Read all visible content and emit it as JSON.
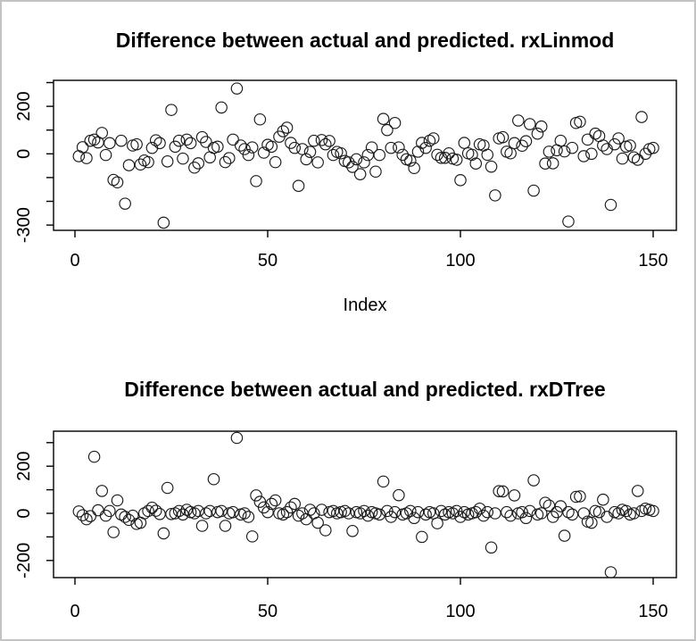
{
  "figure": {
    "background": "#ffffff",
    "border_color": "#c3c3c3",
    "point_color": "#1c1c1c",
    "axis_color": "#000000"
  },
  "chart_data": [
    {
      "type": "scatter",
      "title": "Difference between actual and predicted. rxLinmod",
      "xlabel": "Index",
      "ylabel": "",
      "marker": "open-circle",
      "grid": false,
      "legend": null,
      "x_is_index_from": 1,
      "n_points": 150,
      "x_ticks": [
        0,
        50,
        100,
        150
      ],
      "x_tick_labels": [
        "0",
        "50",
        "100",
        "150"
      ],
      "xlim": [
        -5.6,
        156.2
      ],
      "y_ticks": [
        300,
        200,
        100,
        0,
        -100,
        -200,
        -300
      ],
      "y_tick_labels": [
        "",
        "200",
        "",
        "0",
        "",
        "",
        "-300"
      ],
      "ylim": [
        -322,
        309
      ],
      "values": [
        -10,
        28,
        -18,
        55,
        60,
        48,
        88,
        -5,
        45,
        -110,
        -120,
        55,
        -210,
        -48,
        35,
        40,
        -45,
        -28,
        -35,
        25,
        57,
        45,
        -290,
        -32,
        185,
        30,
        55,
        -20,
        60,
        45,
        -58,
        -40,
        70,
        50,
        -15,
        25,
        30,
        195,
        -35,
        -18,
        60,
        275,
        35,
        20,
        -5,
        27,
        -115,
        145,
        5,
        38,
        30,
        -35,
        72,
        95,
        110,
        46,
        25,
        -135,
        20,
        -23,
        8,
        55,
        -36,
        58,
        40,
        54,
        -5,
        8,
        2,
        -30,
        -36,
        -55,
        -23,
        -86,
        -36,
        -5,
        27,
        -75,
        -5,
        147,
        100,
        25,
        130,
        27,
        -4,
        -23,
        -29,
        -60,
        9,
        46,
        25,
        55,
        65,
        -4,
        -17,
        -17,
        2,
        -20,
        -25,
        -111,
        46,
        2,
        -4,
        -41,
        40,
        35,
        -4,
        -54,
        -175,
        65,
        70,
        9,
        2,
        45,
        140,
        34,
        53,
        125,
        -155,
        85,
        115,
        -41,
        9,
        -40,
        15,
        55,
        10,
        -285,
        25,
        130,
        135,
        -10,
        60,
        0,
        85,
        75,
        35,
        20,
        -215,
        40,
        65,
        -20,
        30,
        35,
        -15,
        -25,
        155,
        0,
        20,
        25
      ]
    },
    {
      "type": "scatter",
      "title": "Difference between actual and predicted. rxDTree",
      "xlabel": "",
      "ylabel": "",
      "marker": "open-circle",
      "grid": false,
      "legend": null,
      "x_is_index_from": 1,
      "n_points": 150,
      "x_ticks": [
        0,
        50,
        100,
        150
      ],
      "x_tick_labels": [
        "0",
        "50",
        "100",
        "150"
      ],
      "xlim": [
        -5.6,
        156.2
      ],
      "y_ticks": [
        300,
        200,
        100,
        0,
        -100,
        -200
      ],
      "y_tick_labels": [
        "",
        "200",
        "",
        "0",
        "",
        "-200"
      ],
      "ylim": [
        -273,
        348
      ],
      "values": [
        8,
        -8,
        -25,
        -12,
        240,
        13,
        95,
        -10,
        10,
        -80,
        55,
        -5,
        -15,
        -28,
        -10,
        -45,
        -40,
        0,
        10,
        24,
        11,
        -3,
        -85,
        108,
        -3,
        0,
        10,
        -5,
        15,
        5,
        0,
        10,
        -53,
        0,
        10,
        145,
        5,
        10,
        -53,
        0,
        5,
        320,
        -5,
        0,
        -15,
        -98,
        76,
        49,
        25,
        5,
        40,
        55,
        0,
        -5,
        5,
        25,
        40,
        -10,
        0,
        -25,
        15,
        0,
        -40,
        15,
        -72,
        5,
        10,
        0,
        5,
        10,
        0,
        -75,
        5,
        0,
        10,
        -10,
        5,
        0,
        -5,
        135,
        10,
        -15,
        5,
        77,
        -5,
        0,
        10,
        -20,
        5,
        -100,
        -5,
        5,
        0,
        -42,
        10,
        -5,
        5,
        0,
        10,
        -15,
        5,
        -5,
        0,
        5,
        20,
        -10,
        5,
        -145,
        0,
        94,
        93,
        5,
        -10,
        76,
        0,
        5,
        -20,
        10,
        140,
        -5,
        0,
        45,
        33,
        -15,
        5,
        30,
        -95,
        5,
        -5,
        70,
        72,
        0,
        -35,
        -40,
        10,
        5,
        58,
        -15,
        -250,
        5,
        0,
        15,
        10,
        -5,
        0,
        95,
        10,
        20,
        15,
        10
      ]
    }
  ]
}
